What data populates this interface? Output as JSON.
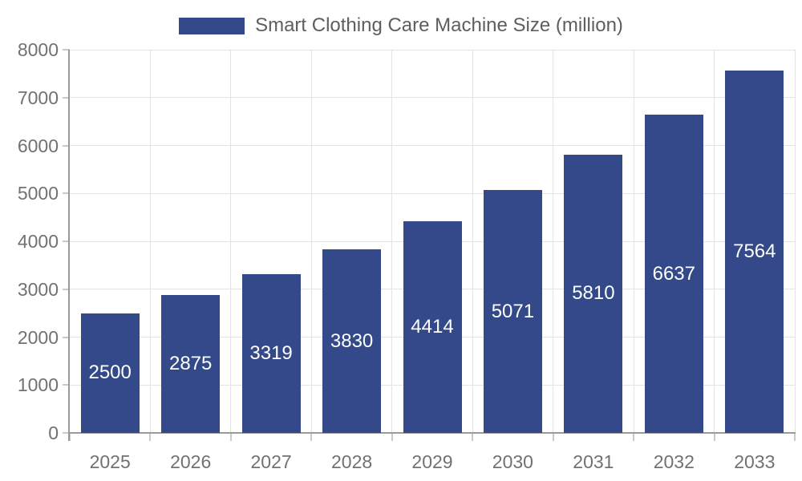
{
  "legend": {
    "label": "Smart Clothing Care Machine Size (million)"
  },
  "chart_data": {
    "type": "bar",
    "categories": [
      "2025",
      "2026",
      "2027",
      "2028",
      "2029",
      "2030",
      "2031",
      "2032",
      "2033"
    ],
    "series": [
      {
        "name": "Smart Clothing Care Machine Size (million)",
        "values": [
          2500,
          2875,
          3319,
          3830,
          4414,
          5071,
          5810,
          6637,
          7564
        ]
      }
    ],
    "title": "",
    "xlabel": "",
    "ylabel": "",
    "ylim": [
      0,
      8000
    ],
    "yticks": [
      0,
      1000,
      2000,
      3000,
      4000,
      5000,
      6000,
      7000,
      8000
    ],
    "grid": true,
    "legend_position": "top",
    "value_labels": "inside-center"
  },
  "colors": {
    "bar": "#33498A",
    "gridline": "#E2E2E9",
    "axis_line": "#9A9A9A",
    "tick": "#C9C9C9",
    "axis_label": "#717171",
    "legend_text": "#5E5E5E",
    "value_label": "#FFFFFF",
    "background": "#FFFFFF"
  }
}
